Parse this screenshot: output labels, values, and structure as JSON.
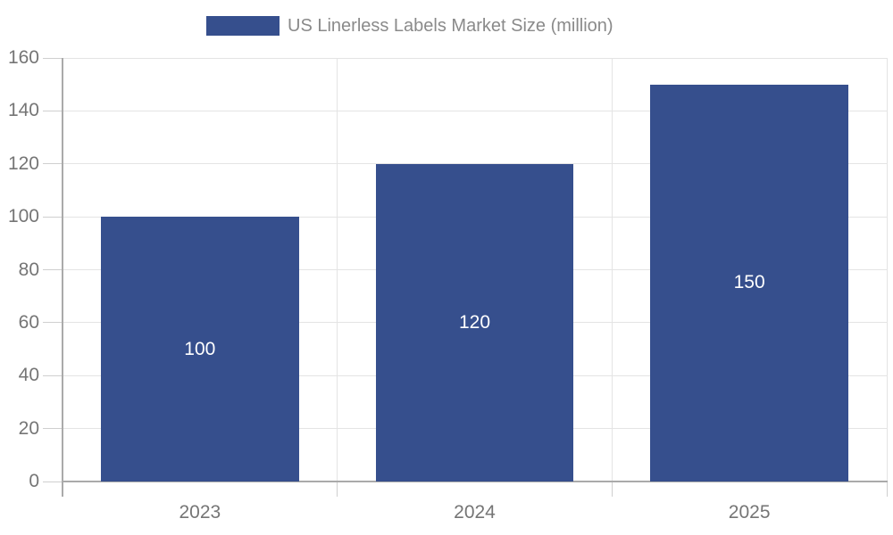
{
  "legend": {
    "label": "US Linerless Labels Market Size (million)"
  },
  "colors": {
    "bar": "#364F8D",
    "grid": "#E4E4E4",
    "axis": "#AAAAAA",
    "tick": "#CFCFCF",
    "tick_text": "#757575",
    "legend_text": "#8A8A8A",
    "value_label": "#FFFFFF",
    "background": "#FFFFFF"
  },
  "chart_data": {
    "type": "bar",
    "title": "US Linerless Labels Market Size (million)",
    "series_name": "US Linerless Labels Market Size (million)",
    "categories": [
      "2023",
      "2024",
      "2025"
    ],
    "values": [
      100,
      120,
      150
    ],
    "bar_value_labels": [
      "100",
      "120",
      "150"
    ],
    "xlabel": "",
    "ylabel": "",
    "ylim": [
      0,
      160
    ],
    "ytick_step": 20,
    "yticks": [
      0,
      20,
      40,
      60,
      80,
      100,
      120,
      140,
      160
    ],
    "grid": true,
    "legend_position": "top"
  }
}
